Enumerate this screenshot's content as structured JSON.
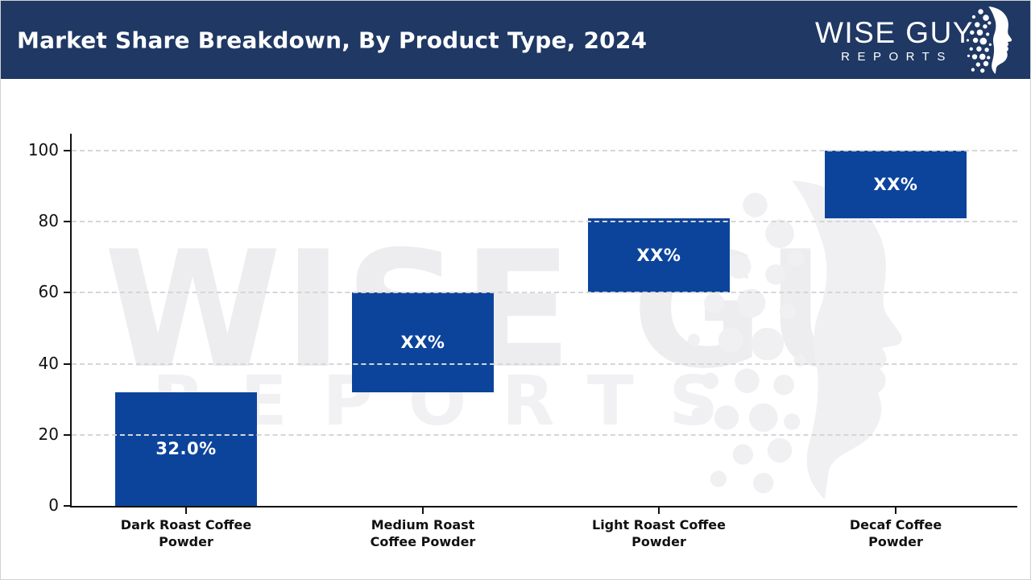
{
  "header": {
    "title": "Market Share Breakdown, By Product Type, 2024",
    "logo": {
      "name": "WISE GUY",
      "tagline": "REPORTS"
    }
  },
  "watermark": {
    "line1": "WISE GU",
    "line2": "REPORTS"
  },
  "colors": {
    "header_bg": "#1f3864",
    "bar_fill": "#0c449c",
    "bar_label_text": "#ffffff",
    "axis": "#111111",
    "gridline": "#d6d6d6",
    "watermark": "#ededf0",
    "page_border": "#d3d3d3"
  },
  "chart_data": {
    "type": "bar",
    "subtype": "waterfall",
    "title": "Market Share Breakdown, By Product Type, 2024",
    "xlabel": "",
    "ylabel": "",
    "ylim": [
      0,
      100
    ],
    "yticks": [
      0,
      20,
      40,
      60,
      80,
      100
    ],
    "grid": true,
    "grid_style": "dashed",
    "legend": "none",
    "categories": [
      "Dark Roast Coffee Powder",
      "Medium Roast Coffee Powder",
      "Light Roast Coffee Powder",
      "Decaf Coffee Powder"
    ],
    "category_lines": [
      [
        "Dark Roast Coffee",
        "Powder"
      ],
      [
        "Medium Roast",
        "Coffee Powder"
      ],
      [
        "Light Roast Coffee",
        "Powder"
      ],
      [
        "Decaf Coffee",
        "Powder"
      ]
    ],
    "values": [
      32,
      28,
      21,
      19
    ],
    "segments": [
      {
        "start": 0,
        "end": 32,
        "label": "32.0%"
      },
      {
        "start": 32,
        "end": 60,
        "label": "XX%"
      },
      {
        "start": 60,
        "end": 81,
        "label": "XX%"
      },
      {
        "start": 81,
        "end": 100,
        "label": "XX%"
      }
    ]
  }
}
